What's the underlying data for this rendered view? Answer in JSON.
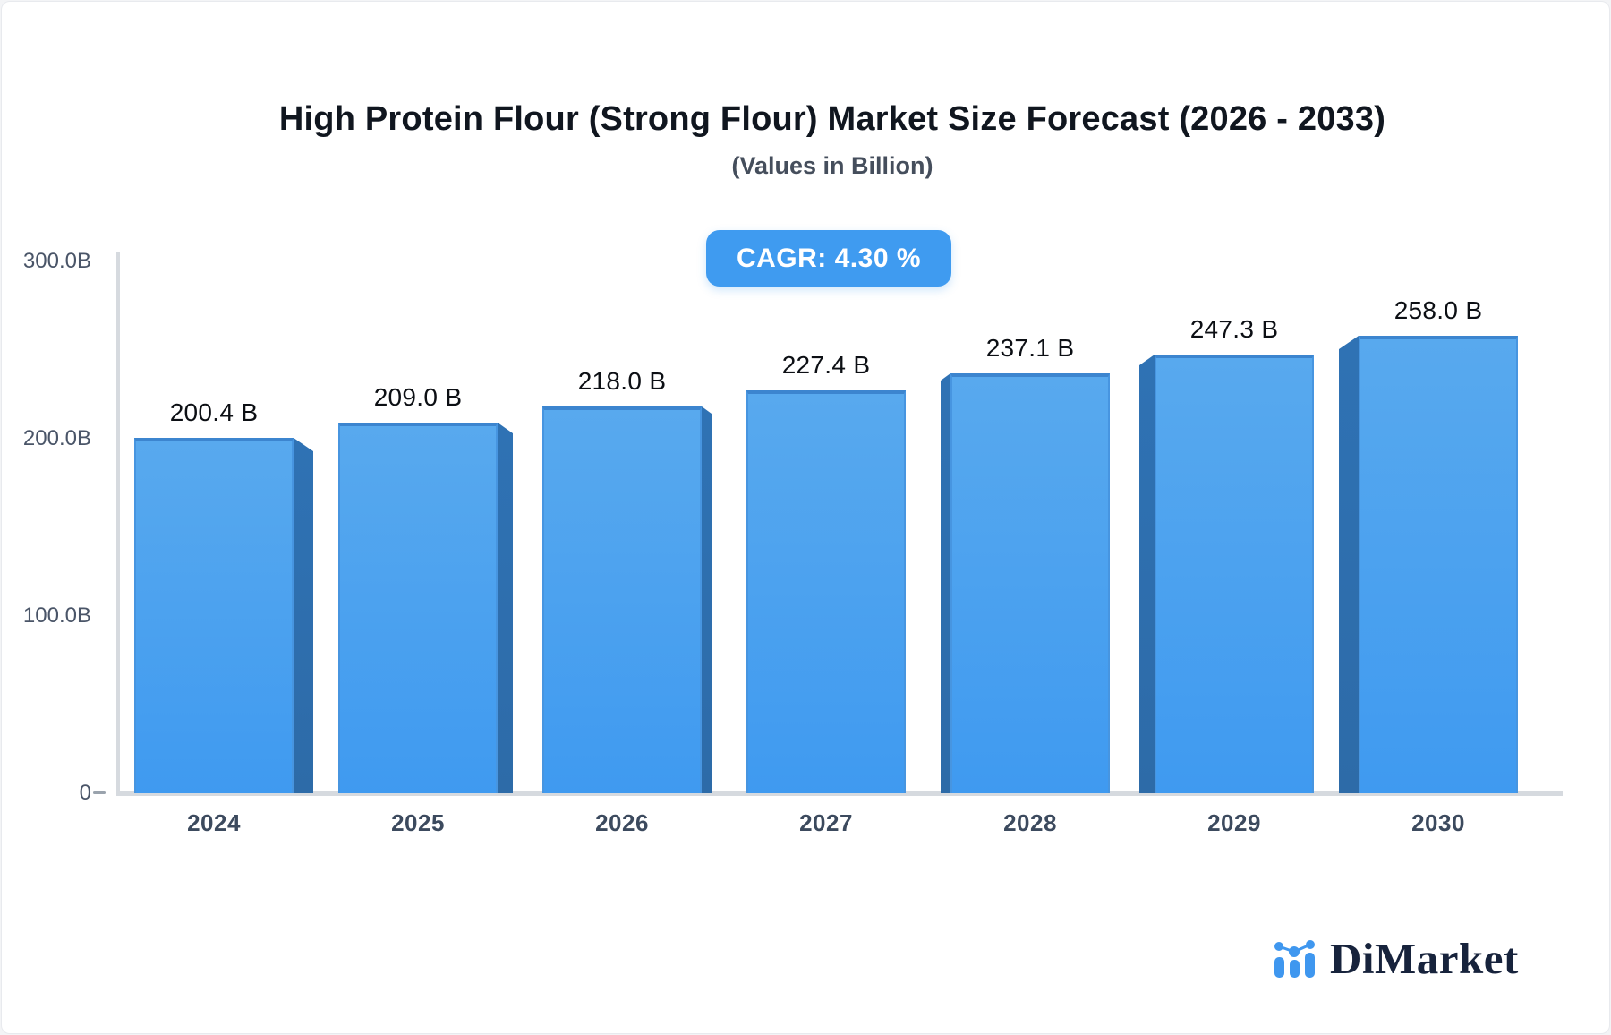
{
  "header": {
    "title": "High Protein Flour (Strong Flour) Market Size Forecast (2026 - 2033)",
    "subtitle": "(Values in Billion)",
    "cagr_badge": "CAGR: 4.30 %"
  },
  "chart_data": {
    "type": "bar",
    "title": "High Protein Flour (Strong Flour) Market Size Forecast (2026 - 2033)",
    "subtitle": "(Values in Billion)",
    "categories": [
      "2024",
      "2025",
      "2026",
      "2027",
      "2028",
      "2029",
      "2030"
    ],
    "values": [
      200.4,
      209.0,
      218.0,
      227.4,
      237.1,
      247.3,
      258.0
    ],
    "bar_labels": [
      "200.4 B",
      "209.0 B",
      "218.0 B",
      "227.4 B",
      "237.1 B",
      "247.3 B",
      "258.0 B"
    ],
    "ytick_values": [
      300,
      200,
      100,
      0
    ],
    "ytick_labels": [
      "300.0B",
      "200.0B",
      "100.0B",
      "0"
    ],
    "xlabel": "",
    "ylabel": "",
    "ylim": [
      0,
      300
    ],
    "grid": "off",
    "legend": "none",
    "style": "3d-perspective-bars"
  },
  "footer": {
    "logo_text": "DiMarket"
  },
  "colors": {
    "bar_face_top": "#58a9ee",
    "bar_face_bottom": "#3f9af0",
    "bar_side": "#2f72b4",
    "badge_bg": "#3f9bf0",
    "axis_line": "#d6dadf",
    "accent": "#3f9bf0",
    "logo_text_color": "#17233c"
  }
}
